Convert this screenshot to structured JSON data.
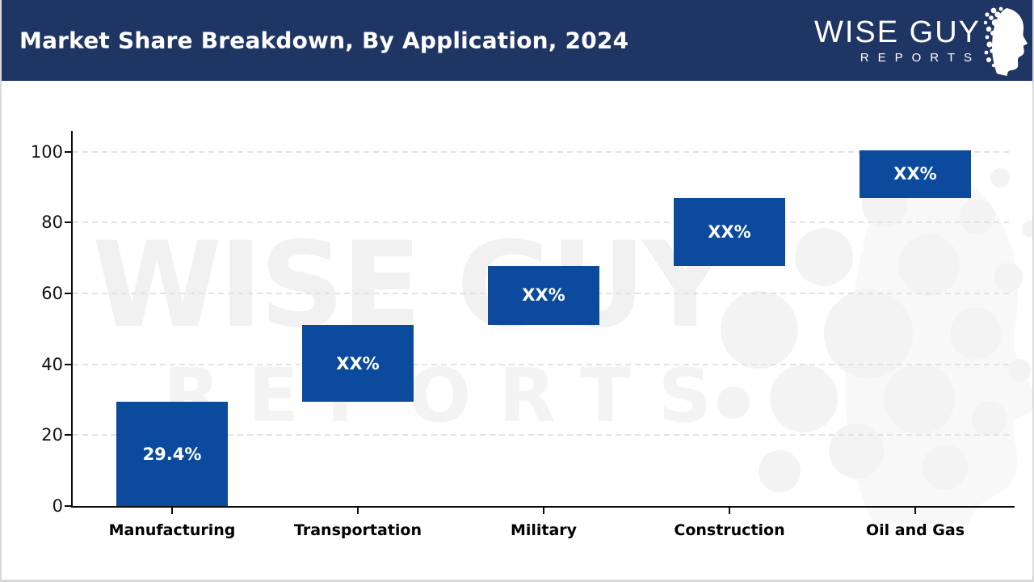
{
  "header": {
    "title": "Market Share Breakdown, By Application, 2024",
    "logo": {
      "name": "WISE GUY",
      "subtitle": "REPORTS"
    }
  },
  "watermark": {
    "line1": "WISE GUY",
    "line2": "REPORTS"
  },
  "chart_data": {
    "type": "bar",
    "subtype": "floating-waterfall",
    "title": "Market Share Breakdown, By Application, 2024",
    "xlabel": "",
    "ylabel": "",
    "categories": [
      "Manufacturing",
      "Transportation",
      "Military",
      "Construction",
      "Oil and Gas"
    ],
    "segments": [
      {
        "category": "Manufacturing",
        "start": 0,
        "end": 29.4,
        "label": "29.4%"
      },
      {
        "category": "Transportation",
        "start": 29.4,
        "end": 51.1,
        "label": "XX%"
      },
      {
        "category": "Military",
        "start": 51.1,
        "end": 67.8,
        "label": "XX%"
      },
      {
        "category": "Construction",
        "start": 67.8,
        "end": 86.9,
        "label": "XX%"
      },
      {
        "category": "Oil and Gas",
        "start": 86.9,
        "end": 100.4,
        "label": "XX%"
      }
    ],
    "yticks": [
      0,
      20,
      40,
      60,
      80,
      100
    ],
    "ylim": [
      0,
      106
    ],
    "grid": "horizontal-dashed",
    "legend": "none"
  },
  "colors": {
    "header_bg": "#1f3563",
    "bar": "#0b4a9c",
    "bar_label": "#ffffff",
    "axis": "#0a0a0a",
    "grid": "#e3e3e3",
    "watermark": "#f1f1f1",
    "page_border": "#d9d9d9"
  }
}
